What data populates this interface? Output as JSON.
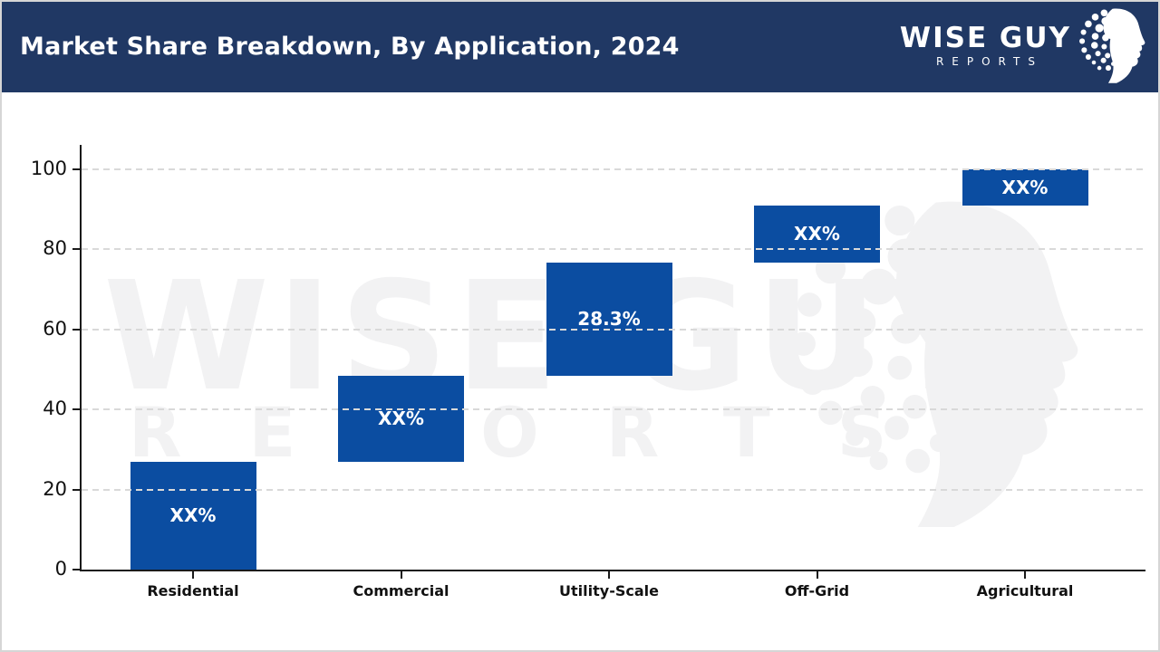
{
  "header": {
    "title": "Market Share Breakdown, By Application, 2024",
    "logo": {
      "line1": "WISE GUY",
      "line2": "REPORTS"
    }
  },
  "watermark": {
    "line1": "WISE GUY",
    "line2": "REPORTS"
  },
  "chart_data": {
    "type": "bar",
    "subtype": "waterfall",
    "title": "Market Share Breakdown, By Application, 2024",
    "xlabel": "",
    "ylabel": "",
    "categories": [
      "Residential",
      "Commercial",
      "Utility-Scale",
      "Off-Grid",
      "Agricultural"
    ],
    "bars": [
      {
        "category": "Residential",
        "start": 0,
        "end": 27,
        "label": "XX%"
      },
      {
        "category": "Commercial",
        "start": 27,
        "end": 48.5,
        "label": "XX%"
      },
      {
        "category": "Utility-Scale",
        "start": 48.5,
        "end": 76.8,
        "label": "28.3%"
      },
      {
        "category": "Off-Grid",
        "start": 76.8,
        "end": 91,
        "label": "XX%"
      },
      {
        "category": "Agricultural",
        "start": 91,
        "end": 100,
        "label": "XX%"
      }
    ],
    "y_ticks": [
      0,
      20,
      40,
      60,
      80,
      100
    ],
    "ylim": [
      0,
      107
    ],
    "grid": "dashed-horizontal-over-bars",
    "legend": "none"
  },
  "colors": {
    "header_bg": "#203864",
    "bar": "#0b4da1",
    "grid": "#d9d9d9",
    "axis": "#1a1a1a",
    "watermark": "#f2f2f3",
    "label_on_bar": "#ffffff"
  }
}
